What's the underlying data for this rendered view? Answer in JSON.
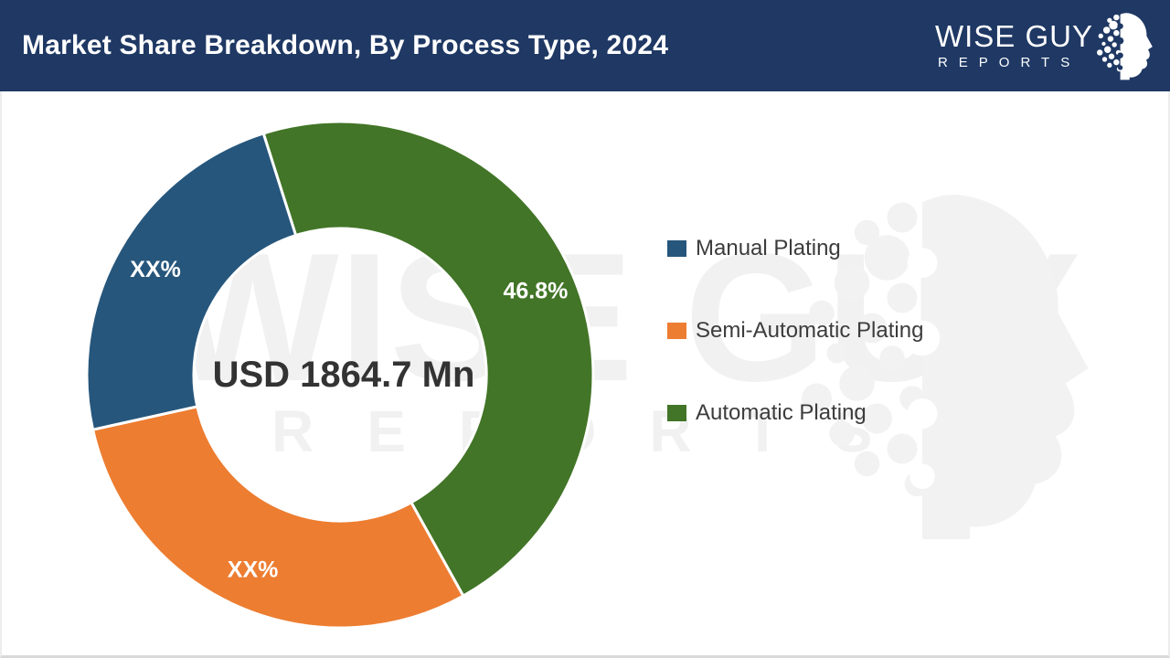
{
  "header": {
    "title": "Market Share Breakdown, By Process Type, 2024",
    "bg_color": "#1F3864",
    "logo": {
      "title": "WISE GUY",
      "subtitle": "REPORTS"
    }
  },
  "watermark": {
    "line1": "WISE GUY",
    "line2": "REPORTS"
  },
  "chart_data": {
    "type": "pie",
    "subtype": "donut",
    "title": "Market Share Breakdown, By Process Type, 2024",
    "center_label": "USD 1864.7 Mn",
    "start_angle_deg": -17.6,
    "direction": "clockwise",
    "legend_position": "right",
    "slices": [
      {
        "name": "Automatic Plating",
        "display_label": "46.8%",
        "pct": 46.8,
        "color": "#427527"
      },
      {
        "name": "Semi-Automatic Plating",
        "display_label": "XX%",
        "pct": 29.6,
        "color": "#ED7D31"
      },
      {
        "name": "Manual Plating",
        "display_label": "XX%",
        "pct": 23.6,
        "color": "#26567C"
      }
    ]
  },
  "legend": {
    "items": [
      {
        "label": "Manual Plating",
        "color": "#26567C"
      },
      {
        "label": "Semi-Automatic Plating",
        "color": "#ED7D31"
      },
      {
        "label": "Automatic Plating",
        "color": "#427527"
      }
    ]
  },
  "colors": {
    "header_bg": "#1F3864",
    "blue": "#26567C",
    "orange": "#ED7D31",
    "green": "#427527",
    "watermark": "#F1F1F1",
    "border": "#D9D9D9"
  }
}
